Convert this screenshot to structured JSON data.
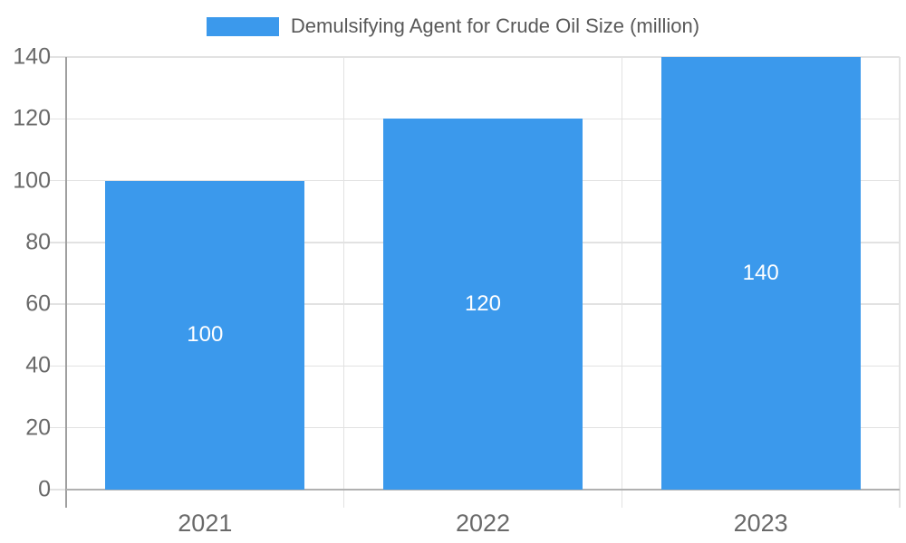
{
  "legend": {
    "label": "Demulsifying Agent for Crude Oil Size (million)"
  },
  "chart_data": {
    "type": "bar",
    "title": "Demulsifying Agent for Crude Oil Size (million)",
    "categories": [
      "2021",
      "2022",
      "2023"
    ],
    "values": [
      100,
      120,
      140
    ],
    "bar_value_labels": [
      "100",
      "120",
      "140"
    ],
    "xlabel": "",
    "ylabel": "",
    "ylim": [
      0,
      140
    ],
    "yticks": [
      0,
      20,
      40,
      60,
      80,
      100,
      120,
      140
    ],
    "grid": "horizontal gridlines at every y tick, vertical gridlines at category boundaries, tick extensions beyond axes",
    "legend_position": "top-center",
    "bar_label_position": "center-inside",
    "colors": {
      "bar": "#3b99ec",
      "grid": "#e2e2e2",
      "y_axis_line": "#a0a0a0",
      "x_axis_line": "#b0b0b0",
      "tick_text": "#696969",
      "legend_text": "#595959",
      "bar_label_text": "#ffffff",
      "background": "#ffffff"
    }
  }
}
